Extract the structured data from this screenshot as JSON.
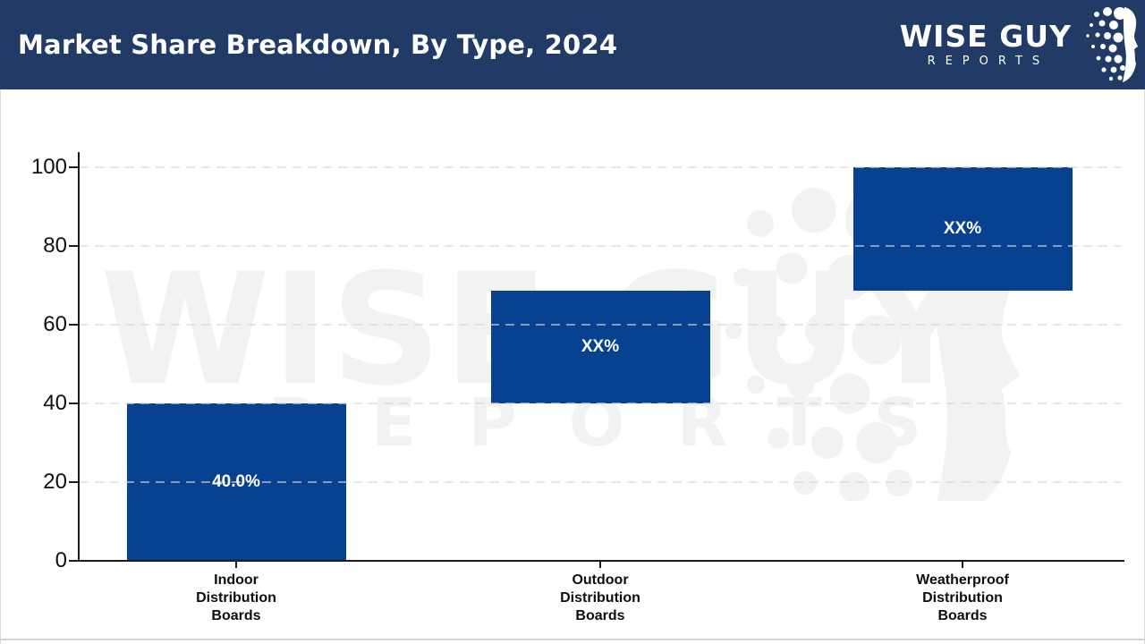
{
  "header": {
    "title": "Market Share Breakdown, By Type, 2024",
    "bg_color": "#213a66",
    "logo": {
      "wordmark": "WISE GUY",
      "subtext": "REPORTS"
    }
  },
  "watermark": {
    "wordmark": "WISE GUY",
    "subtext": "REPORTS"
  },
  "chart_data": {
    "type": "bar",
    "variant": "waterfall",
    "title": "Market Share Breakdown, By Type, 2024",
    "categories": [
      {
        "lines": [
          "Indoor",
          "Distribution",
          "Boards"
        ]
      },
      {
        "lines": [
          "Outdoor",
          "Distribution",
          "Boards"
        ]
      },
      {
        "lines": [
          "Weatherproof",
          "Distribution",
          "Boards"
        ]
      }
    ],
    "segments": [
      {
        "category": "Indoor Distribution Boards",
        "start": 0,
        "end": 40,
        "label": "40.0%"
      },
      {
        "category": "Outdoor Distribution Boards",
        "start": 40,
        "end": 68.6,
        "label": "XX%"
      },
      {
        "category": "Weatherproof Distribution Boards",
        "start": 68.6,
        "end": 100,
        "label": "XX%"
      }
    ],
    "ylim": [
      0,
      100
    ],
    "yticks": [
      0,
      20,
      40,
      60,
      80,
      100
    ],
    "xlabel": "",
    "ylabel": "",
    "legend": "none",
    "grid": {
      "axis": "y",
      "style": "dashed",
      "color": "#e0e0e0"
    },
    "bar_color": "#07418f",
    "value_label_color": "#ffffff"
  }
}
